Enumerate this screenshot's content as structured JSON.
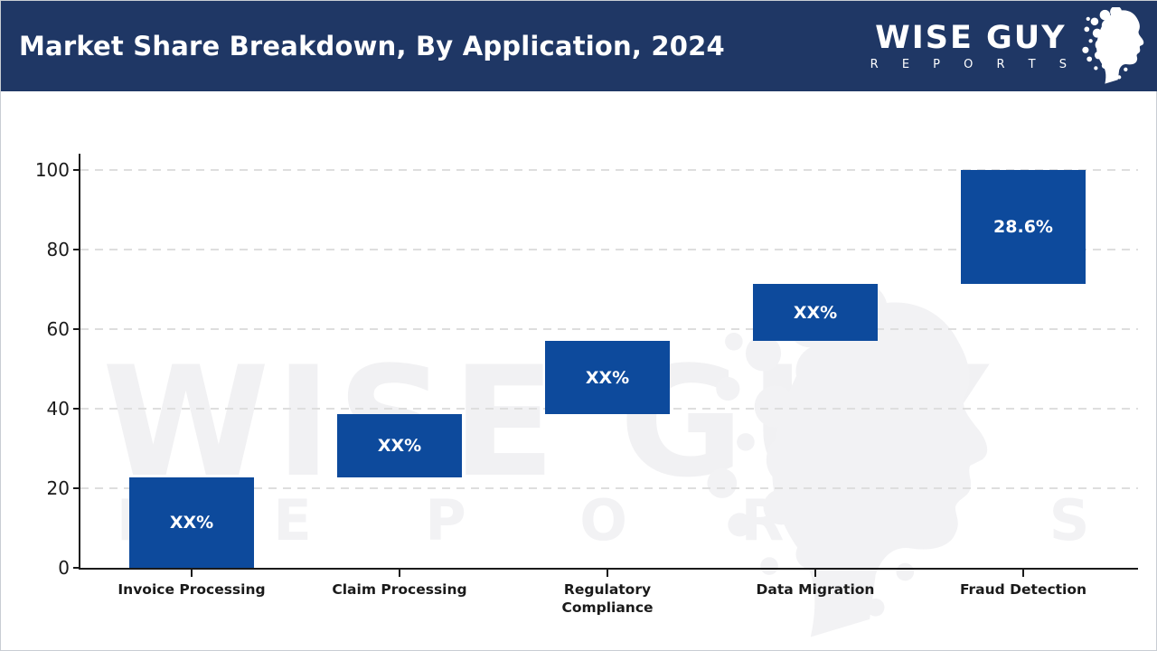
{
  "header": {
    "title": "Market Share Breakdown, By Application, 2024",
    "bg_color": "#1f3765",
    "logo": {
      "name": "WISE GUY",
      "sub": "R E P O R T S",
      "icon": "face-profile-dots-icon"
    }
  },
  "watermark": {
    "name": "WISE GUY",
    "sub": "R E P O R T S",
    "icon": "face-profile-dots-icon"
  },
  "chart_data": {
    "type": "bar",
    "variant": "floating-waterfall",
    "title": "Market Share Breakdown, By Application, 2024",
    "categories": [
      "Invoice Processing",
      "Claim Processing",
      "Regulatory\nCompliance",
      "Data Migration",
      "Fraud Detection"
    ],
    "segments": [
      {
        "category": "Invoice Processing",
        "start": 0,
        "end": 22.8,
        "label": "XX%"
      },
      {
        "category": "Claim Processing",
        "start": 22.8,
        "end": 38.6,
        "label": "XX%"
      },
      {
        "category": "Regulatory Compliance",
        "start": 38.6,
        "end": 57.0,
        "label": "XX%"
      },
      {
        "category": "Data Migration",
        "start": 57.0,
        "end": 71.4,
        "label": "XX%"
      },
      {
        "category": "Fraud Detection",
        "start": 71.4,
        "end": 100,
        "label": "28.6%"
      }
    ],
    "yticks": [
      0,
      20,
      40,
      60,
      80,
      100
    ],
    "ylim": [
      0,
      104
    ],
    "xlabel": "",
    "ylabel": "",
    "legend": "none",
    "grid": "horizontal-dashed",
    "colors": {
      "bar": "#0d4a9c",
      "bar_label": "#ffffff",
      "grid": "#dedede",
      "axis": "#1a1a1a",
      "header_bg": "#1f3765",
      "watermark": "#f1f1f3"
    }
  }
}
